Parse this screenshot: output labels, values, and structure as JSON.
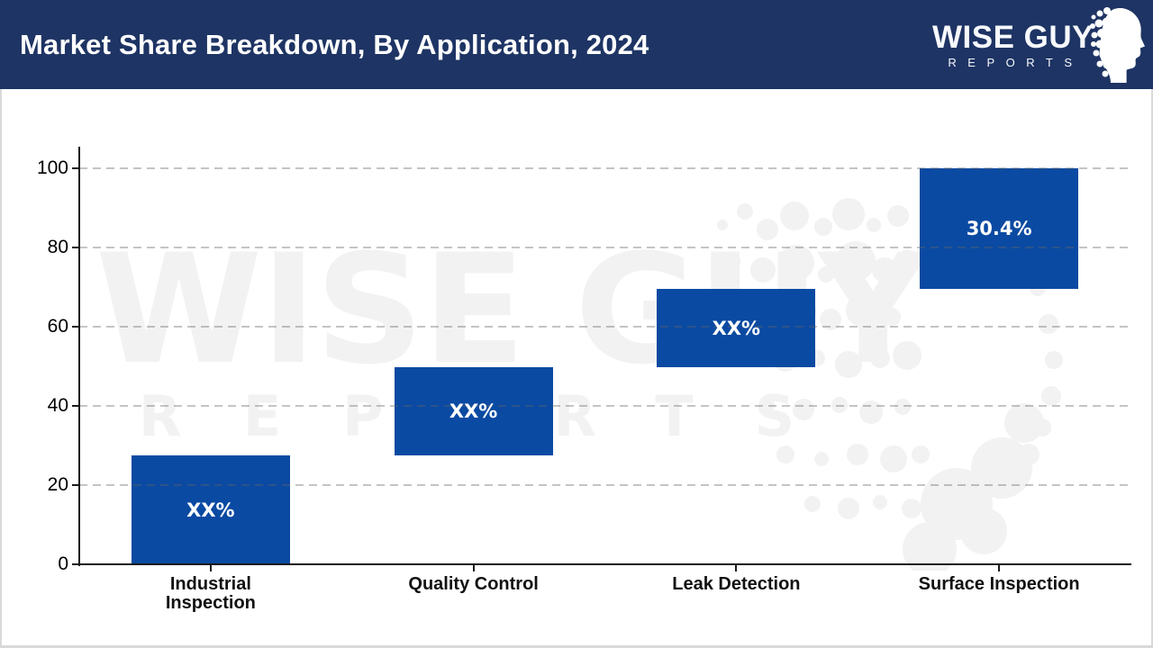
{
  "header": {
    "title": "Market Share Breakdown, By Application, 2024",
    "logo": {
      "line1": "WISE GUY",
      "line2": "REPORTS"
    }
  },
  "watermark": {
    "line1": "WISE GUY",
    "line2": "REPORTS"
  },
  "colors": {
    "header_navy": "#1e3464",
    "bar_blue": "#0b4aa2",
    "watermark_gray": "#f2f2f2",
    "axis_black": "#1a1a1a"
  },
  "chart_data": {
    "type": "bar",
    "subtype": "floating-waterfall",
    "title": "Market Share Breakdown, By Application, 2024",
    "categories": [
      "Industrial Inspection",
      "Quality Control",
      "Leak Detection",
      "Surface Inspection"
    ],
    "tick_labels": [
      [
        "Industrial",
        "Inspection"
      ],
      [
        "Quality Control"
      ],
      [
        "Leak Detection"
      ],
      [
        "Surface Inspection"
      ]
    ],
    "segments": [
      {
        "category": "Industrial Inspection",
        "start": 0,
        "end": 27.5,
        "label": "XX%"
      },
      {
        "category": "Quality Control",
        "start": 27.5,
        "end": 49.7,
        "label": "XX%"
      },
      {
        "category": "Leak Detection",
        "start": 49.7,
        "end": 69.6,
        "label": "XX%"
      },
      {
        "category": "Surface Inspection",
        "start": 69.6,
        "end": 100,
        "label": "30.4%"
      }
    ],
    "ylim": [
      0,
      100
    ],
    "yticks": [
      0,
      20,
      40,
      60,
      80,
      100
    ],
    "grid": "dashed horizontal, drawn above bars",
    "legend": "none"
  }
}
